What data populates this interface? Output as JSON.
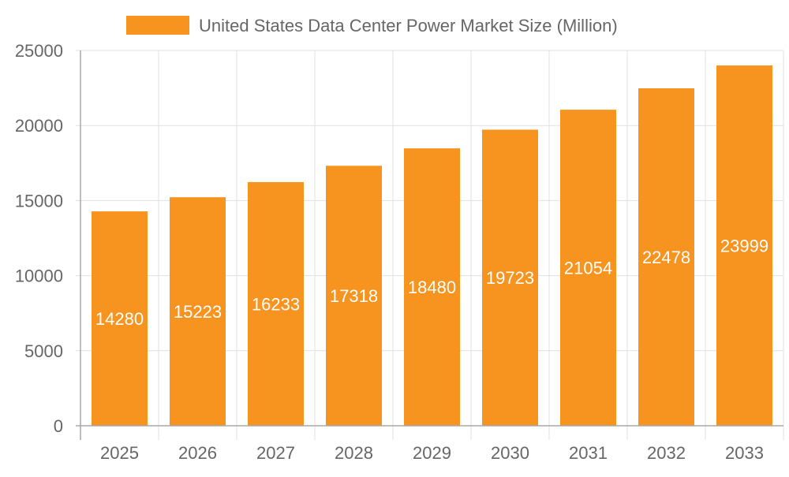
{
  "chart_data": {
    "type": "bar",
    "title": "",
    "xlabel": "",
    "ylabel": "",
    "categories": [
      "2025",
      "2026",
      "2027",
      "2028",
      "2029",
      "2030",
      "2031",
      "2032",
      "2033"
    ],
    "series": [
      {
        "name": "United States Data Center Power Market Size (Million)",
        "values": [
          14280,
          15223,
          16233,
          17318,
          18480,
          19723,
          21054,
          22478,
          23999
        ]
      }
    ],
    "ylim": [
      0,
      25000
    ],
    "yticks": [
      0,
      5000,
      10000,
      15000,
      20000,
      25000
    ],
    "grid": true,
    "legend": "top-center",
    "data_labels": true,
    "colors": {
      "bar": "#f7941f",
      "grid": "#e0e0e0",
      "axis": "#a8a8a8",
      "text": "#666666",
      "label": "#ffffff"
    }
  }
}
